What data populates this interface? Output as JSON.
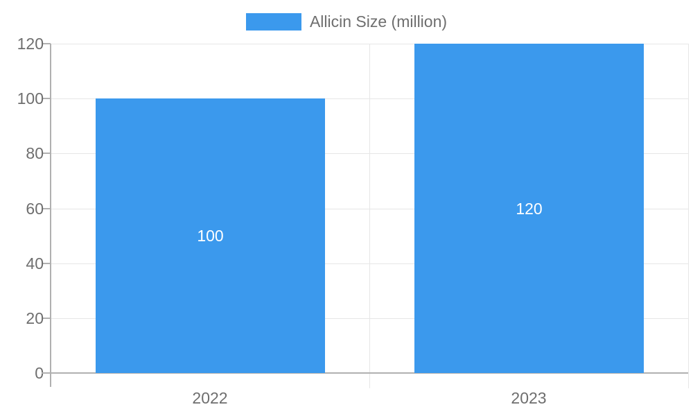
{
  "chart_data": {
    "type": "bar",
    "categories": [
      "2022",
      "2023"
    ],
    "series": [
      {
        "name": "Allicin Size (million)",
        "values": [
          100,
          120
        ]
      }
    ],
    "bar_value_labels": [
      "100",
      "120"
    ],
    "title": "",
    "xlabel": "",
    "ylabel": "",
    "ylim": [
      0,
      120
    ],
    "yticks": [
      0,
      20,
      40,
      60,
      80,
      100,
      120
    ],
    "grid": true,
    "legend_position": "top-center",
    "colors": {
      "bar": "#3B99ED",
      "bar_label_text": "#FFFFFF",
      "axis_line": "#B0B0B0",
      "gridline": "#E6E6E6",
      "label_text": "#6E6E6E",
      "background": "#FFFFFF"
    }
  }
}
